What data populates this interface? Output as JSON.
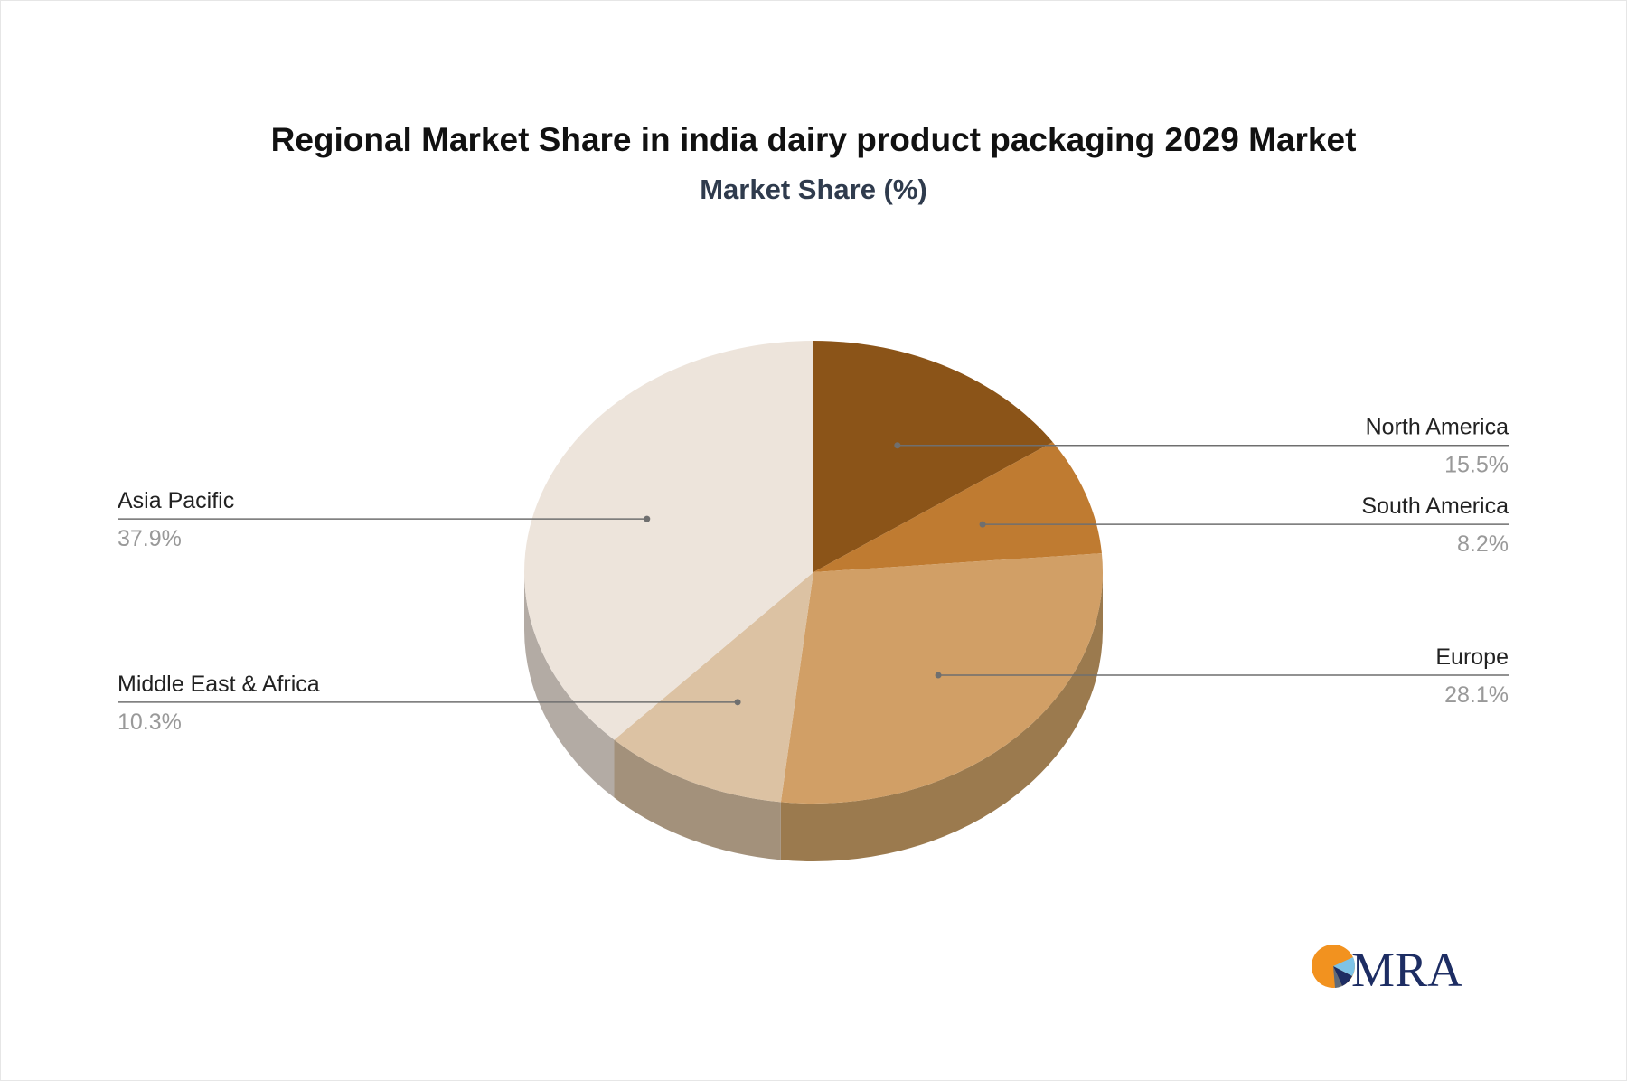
{
  "title": "Regional Market Share in india dairy product packaging 2029 Market",
  "subtitle": "Market Share (%)",
  "logo": {
    "text": "MRA"
  },
  "chart_data": {
    "type": "pie",
    "title": "Regional Market Share in india dairy product packaging 2029 Market",
    "subtitle": "Market Share (%)",
    "unit": "%",
    "slices": [
      {
        "label": "North America",
        "value": 15.5,
        "display": "15.5%",
        "color": "#8b5418",
        "side_color": "#6b4317"
      },
      {
        "label": "South America",
        "value": 8.2,
        "display": "8.2%",
        "color": "#bf7b31",
        "side_color": "#8f5c27"
      },
      {
        "label": "Europe",
        "value": 28.1,
        "display": "28.1%",
        "color": "#d19f66",
        "side_color": "#9b7a4e"
      },
      {
        "label": "Middle East & Africa",
        "value": 10.3,
        "display": "10.3%",
        "color": "#dcc2a3",
        "side_color": "#a3917b"
      },
      {
        "label": "Asia Pacific",
        "value": 37.9,
        "display": "37.9%",
        "color": "#ede4db",
        "side_color": "#b3aba4"
      }
    ]
  }
}
